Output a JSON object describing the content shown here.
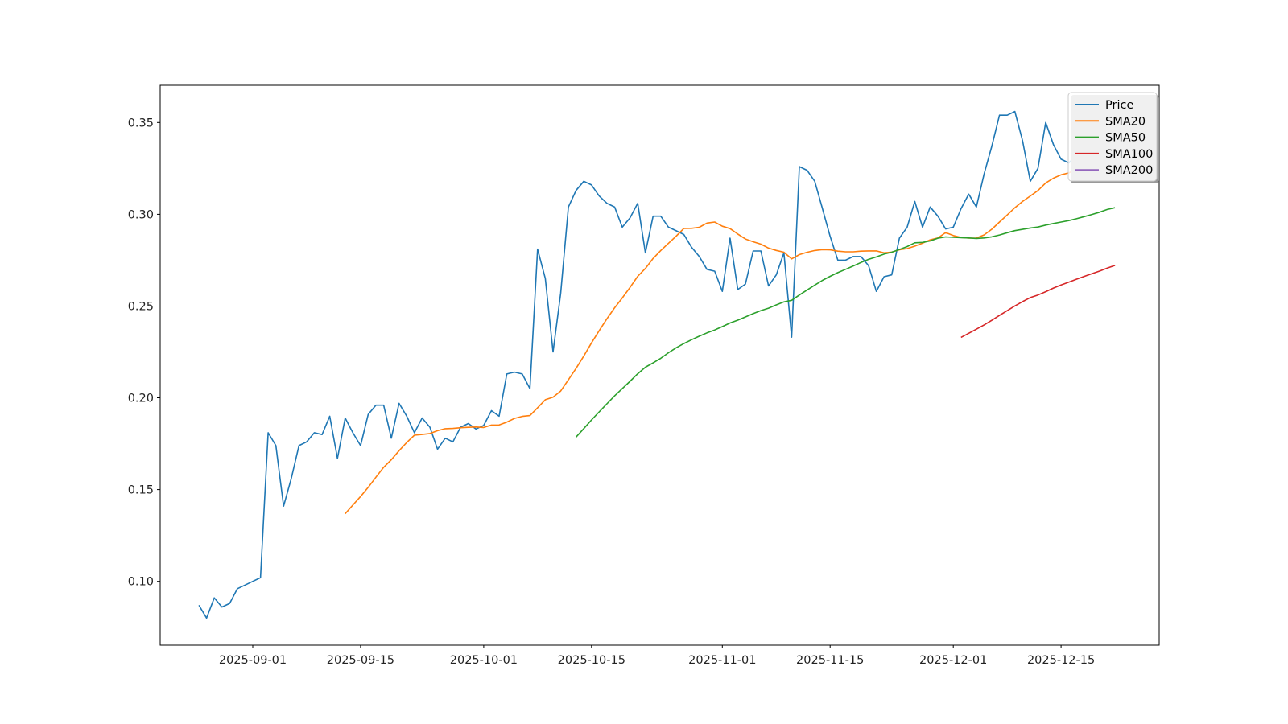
{
  "chart_data": {
    "type": "line",
    "title": "",
    "xlabel": "",
    "ylabel": "",
    "grid": false,
    "x_dates": [
      "2025-08-25",
      "2025-08-26",
      "2025-08-27",
      "2025-08-28",
      "2025-08-29",
      "2025-08-30",
      "2025-08-31",
      "2025-09-01",
      "2025-09-02",
      "2025-09-03",
      "2025-09-04",
      "2025-09-05",
      "2025-09-06",
      "2025-09-07",
      "2025-09-08",
      "2025-09-09",
      "2025-09-10",
      "2025-09-11",
      "2025-09-12",
      "2025-09-13",
      "2025-09-14",
      "2025-09-15",
      "2025-09-16",
      "2025-09-17",
      "2025-09-18",
      "2025-09-19",
      "2025-09-20",
      "2025-09-21",
      "2025-09-22",
      "2025-09-23",
      "2025-09-24",
      "2025-09-25",
      "2025-09-26",
      "2025-09-27",
      "2025-09-28",
      "2025-09-29",
      "2025-09-30",
      "2025-10-01",
      "2025-10-02",
      "2025-10-03",
      "2025-10-04",
      "2025-10-05",
      "2025-10-06",
      "2025-10-07",
      "2025-10-08",
      "2025-10-09",
      "2025-10-10",
      "2025-10-11",
      "2025-10-12",
      "2025-10-13",
      "2025-10-14",
      "2025-10-15",
      "2025-10-16",
      "2025-10-17",
      "2025-10-18",
      "2025-10-19",
      "2025-10-20",
      "2025-10-21",
      "2025-10-22",
      "2025-10-23",
      "2025-10-24",
      "2025-10-25",
      "2025-10-26",
      "2025-10-27",
      "2025-10-28",
      "2025-10-29",
      "2025-10-30",
      "2025-10-31",
      "2025-11-01",
      "2025-11-02",
      "2025-11-03",
      "2025-11-04",
      "2025-11-05",
      "2025-11-06",
      "2025-11-07",
      "2025-11-08",
      "2025-11-09",
      "2025-11-10",
      "2025-11-11",
      "2025-11-12",
      "2025-11-13",
      "2025-11-14",
      "2025-11-15",
      "2025-11-16",
      "2025-11-17",
      "2025-11-18",
      "2025-11-19",
      "2025-11-20",
      "2025-11-21",
      "2025-11-22",
      "2025-11-23",
      "2025-11-24",
      "2025-11-25",
      "2025-11-26",
      "2025-11-27",
      "2025-11-28",
      "2025-11-29",
      "2025-11-30",
      "2025-12-01",
      "2025-12-02",
      "2025-12-03",
      "2025-12-04",
      "2025-12-05",
      "2025-12-06",
      "2025-12-07",
      "2025-12-08",
      "2025-12-09",
      "2025-12-10",
      "2025-12-11",
      "2025-12-12",
      "2025-12-13",
      "2025-12-14",
      "2025-12-15",
      "2025-12-16",
      "2025-12-17",
      "2025-12-18",
      "2025-12-19",
      "2025-12-20",
      "2025-12-21",
      "2025-12-22"
    ],
    "series": [
      {
        "name": "Price",
        "color": "#1f77b4",
        "values": [
          0.087,
          0.08,
          0.091,
          0.086,
          0.088,
          0.096,
          0.098,
          0.1,
          0.102,
          0.181,
          0.174,
          0.141,
          0.156,
          0.174,
          0.176,
          0.181,
          0.18,
          0.19,
          0.167,
          0.189,
          0.181,
          0.174,
          0.191,
          0.196,
          0.196,
          0.178,
          0.197,
          0.19,
          0.181,
          0.189,
          0.184,
          0.172,
          0.178,
          0.176,
          0.184,
          0.186,
          0.183,
          0.185,
          0.193,
          0.19,
          0.213,
          0.214,
          0.213,
          0.205,
          0.281,
          0.265,
          0.225,
          0.257,
          0.304,
          0.313,
          0.318,
          0.316,
          0.31,
          0.306,
          0.304,
          0.293,
          0.298,
          0.306,
          0.279,
          0.299,
          0.299,
          0.293,
          0.291,
          0.289,
          0.282,
          0.277,
          0.27,
          0.269,
          0.258,
          0.287,
          0.259,
          0.262,
          0.28,
          0.28,
          0.261,
          0.267,
          0.279,
          0.233,
          0.326,
          0.324,
          0.318,
          0.303,
          0.288,
          0.275,
          0.275,
          0.277,
          0.277,
          0.272,
          0.258,
          0.266,
          0.267,
          0.287,
          0.293,
          0.307,
          0.293,
          0.304,
          0.299,
          0.292,
          0.293,
          0.303,
          0.311,
          0.304,
          0.322,
          0.337,
          0.354,
          0.354,
          0.356,
          0.34,
          0.318,
          0.325,
          0.35,
          0.338,
          0.33,
          0.328,
          0.332,
          0.334,
          0.33,
          0.331,
          0.333,
          0.334
        ]
      },
      {
        "name": "SMA20",
        "color": "#ff7f0e",
        "derived_from": "Price",
        "sma_window": 20
      },
      {
        "name": "SMA50",
        "color": "#2ca02c",
        "derived_from": "Price",
        "sma_window": 50
      },
      {
        "name": "SMA100",
        "color": "#d62728",
        "derived_from": "Price",
        "sma_window": 100
      },
      {
        "name": "SMA200",
        "color": "#9467bd",
        "derived_from": "Price",
        "sma_window": 200
      }
    ],
    "x_tick_labels": [
      "2025-09-01",
      "2025-09-15",
      "2025-10-01",
      "2025-10-15",
      "2025-11-01",
      "2025-11-15",
      "2025-12-01",
      "2025-12-15"
    ],
    "x_tick_day_index": [
      7,
      21,
      37,
      51,
      68,
      82,
      98,
      112
    ],
    "y_tick_labels": [
      "0.35",
      "0.30",
      "0.25",
      "0.20",
      "0.15",
      "0.10"
    ],
    "y_tick_values": [
      0.35,
      0.3,
      0.25,
      0.2,
      0.15,
      0.1
    ],
    "ylim": [
      0.066,
      0.37
    ],
    "legend": {
      "position": "upper right",
      "shadow": true,
      "entries": [
        "Price",
        "SMA20",
        "SMA50",
        "SMA100",
        "SMA200"
      ]
    },
    "tick_color": "#222222",
    "spine_color": "#000000"
  }
}
